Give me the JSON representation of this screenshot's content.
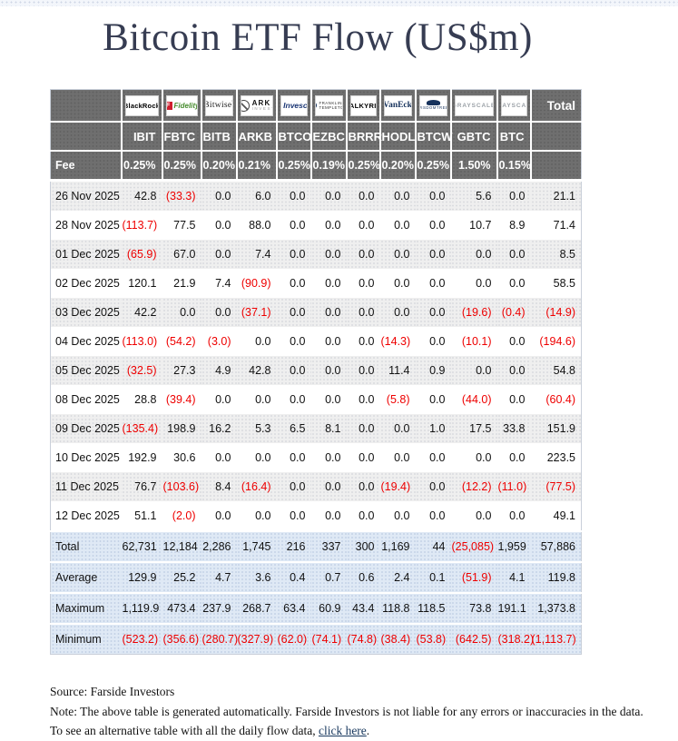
{
  "page": {
    "title": "Bitcoin ETF Flow (US$m)",
    "source_line": "Source: Farside Investors",
    "note_before_link": "Note: The above table is generated automatically. Farside Investors is not liable for any errors or inaccuracies in the data. To see an alternative table with all the daily flow data, ",
    "note_link_text": "click here",
    "note_after_link": "."
  },
  "table": {
    "total_header": "Total",
    "fee_label": "Fee",
    "logos": [
      {
        "name": "BlackRock",
        "style": "blackrock",
        "text": "BlackRock"
      },
      {
        "name": "Fidelity",
        "style": "fidelity",
        "text": "Fidelity"
      },
      {
        "name": "Bitwise",
        "style": "bitwise",
        "text": "Bitwise"
      },
      {
        "name": "ARK Invest",
        "style": "ark",
        "text": "ARK",
        "sub": "INVEST"
      },
      {
        "name": "Invesco",
        "style": "invesco",
        "text": "Invesco"
      },
      {
        "name": "Franklin Templeton",
        "style": "franklin",
        "text": "FRANKLIN",
        "sub": "TEMPLETON"
      },
      {
        "name": "Valkyrie",
        "style": "valkyrie",
        "text": "VALKYRIE"
      },
      {
        "name": "VanEck",
        "style": "vaneck",
        "text": "VanEck"
      },
      {
        "name": "WisdomTree",
        "style": "wisdomtree",
        "text": "WISDOMTREE"
      },
      {
        "name": "Grayscale",
        "style": "grayscale",
        "text": "GRAYSCALE"
      },
      {
        "name": "Grayscale Mini",
        "style": "grayscale",
        "text": "GRAYSCALE"
      }
    ],
    "tickers": [
      "IBIT",
      "FBTC",
      "BITB",
      "ARKB",
      "BTCO",
      "EZBC",
      "BRRR",
      "HODL",
      "BTCW",
      "GBTC",
      "BTC"
    ],
    "fees": [
      "0.25%",
      "0.25%",
      "0.20%",
      "0.21%",
      "0.25%",
      "0.19%",
      "0.25%",
      "0.20%",
      "0.25%",
      "1.50%",
      "0.15%"
    ],
    "rows": [
      {
        "date": "26 Nov 2025",
        "values": [
          "42.8",
          "(33.3)",
          "0.0",
          "6.0",
          "0.0",
          "0.0",
          "0.0",
          "0.0",
          "0.0",
          "5.6",
          "0.0",
          "21.1"
        ]
      },
      {
        "date": "28 Nov 2025",
        "values": [
          "(113.7)",
          "77.5",
          "0.0",
          "88.0",
          "0.0",
          "0.0",
          "0.0",
          "0.0",
          "0.0",
          "10.7",
          "8.9",
          "71.4"
        ]
      },
      {
        "date": "01 Dec 2025",
        "values": [
          "(65.9)",
          "67.0",
          "0.0",
          "7.4",
          "0.0",
          "0.0",
          "0.0",
          "0.0",
          "0.0",
          "0.0",
          "0.0",
          "8.5"
        ]
      },
      {
        "date": "02 Dec 2025",
        "values": [
          "120.1",
          "21.9",
          "7.4",
          "(90.9)",
          "0.0",
          "0.0",
          "0.0",
          "0.0",
          "0.0",
          "0.0",
          "0.0",
          "58.5"
        ]
      },
      {
        "date": "03 Dec 2025",
        "values": [
          "42.2",
          "0.0",
          "0.0",
          "(37.1)",
          "0.0",
          "0.0",
          "0.0",
          "0.0",
          "0.0",
          "(19.6)",
          "(0.4)",
          "(14.9)"
        ]
      },
      {
        "date": "04 Dec 2025",
        "values": [
          "(113.0)",
          "(54.2)",
          "(3.0)",
          "0.0",
          "0.0",
          "0.0",
          "0.0",
          "(14.3)",
          "0.0",
          "(10.1)",
          "0.0",
          "(194.6)"
        ]
      },
      {
        "date": "05 Dec 2025",
        "values": [
          "(32.5)",
          "27.3",
          "4.9",
          "42.8",
          "0.0",
          "0.0",
          "0.0",
          "11.4",
          "0.9",
          "0.0",
          "0.0",
          "54.8"
        ]
      },
      {
        "date": "08 Dec 2025",
        "values": [
          "28.8",
          "(39.4)",
          "0.0",
          "0.0",
          "0.0",
          "0.0",
          "0.0",
          "(5.8)",
          "0.0",
          "(44.0)",
          "0.0",
          "(60.4)"
        ]
      },
      {
        "date": "09 Dec 2025",
        "values": [
          "(135.4)",
          "198.9",
          "16.2",
          "5.3",
          "6.5",
          "8.1",
          "0.0",
          "0.0",
          "1.0",
          "17.5",
          "33.8",
          "151.9"
        ]
      },
      {
        "date": "10 Dec 2025",
        "values": [
          "192.9",
          "30.6",
          "0.0",
          "0.0",
          "0.0",
          "0.0",
          "0.0",
          "0.0",
          "0.0",
          "0.0",
          "0.0",
          "223.5"
        ]
      },
      {
        "date": "11 Dec 2025",
        "values": [
          "76.7",
          "(103.6)",
          "8.4",
          "(16.4)",
          "0.0",
          "0.0",
          "0.0",
          "(19.4)",
          "0.0",
          "(12.2)",
          "(11.0)",
          "(77.5)"
        ]
      },
      {
        "date": "12 Dec 2025",
        "values": [
          "51.1",
          "(2.0)",
          "0.0",
          "0.0",
          "0.0",
          "0.0",
          "0.0",
          "0.0",
          "0.0",
          "0.0",
          "0.0",
          "49.1"
        ]
      }
    ],
    "summary": [
      {
        "label": "Total",
        "values": [
          "62,731",
          "12,184",
          "2,286",
          "1,745",
          "216",
          "337",
          "300",
          "1,169",
          "44",
          "(25,085)",
          "1,959",
          "57,886"
        ]
      },
      {
        "label": "Average",
        "values": [
          "129.9",
          "25.2",
          "4.7",
          "3.6",
          "0.4",
          "0.7",
          "0.6",
          "2.4",
          "0.1",
          "(51.9)",
          "4.1",
          "119.8"
        ]
      },
      {
        "label": "Maximum",
        "values": [
          "1,119.9",
          "473.4",
          "237.9",
          "268.7",
          "63.4",
          "60.9",
          "43.4",
          "118.8",
          "118.5",
          "73.8",
          "191.1",
          "1,373.8"
        ]
      },
      {
        "label": "Minimum",
        "values": [
          "(523.2)",
          "(356.6)",
          "(280.7)",
          "(327.9)",
          "(62.0)",
          "(74.1)",
          "(74.8)",
          "(38.4)",
          "(53.8)",
          "(642.5)",
          "(318.2)",
          "(1,113.7)"
        ]
      }
    ],
    "colors": {
      "negative": "#ee0000",
      "positive": "#111111",
      "header_bg": "#6f6f6f",
      "striped_row_bg": "#efefef",
      "summary_row_bg": "#dfe9f5",
      "title_color": "#363c52"
    }
  }
}
